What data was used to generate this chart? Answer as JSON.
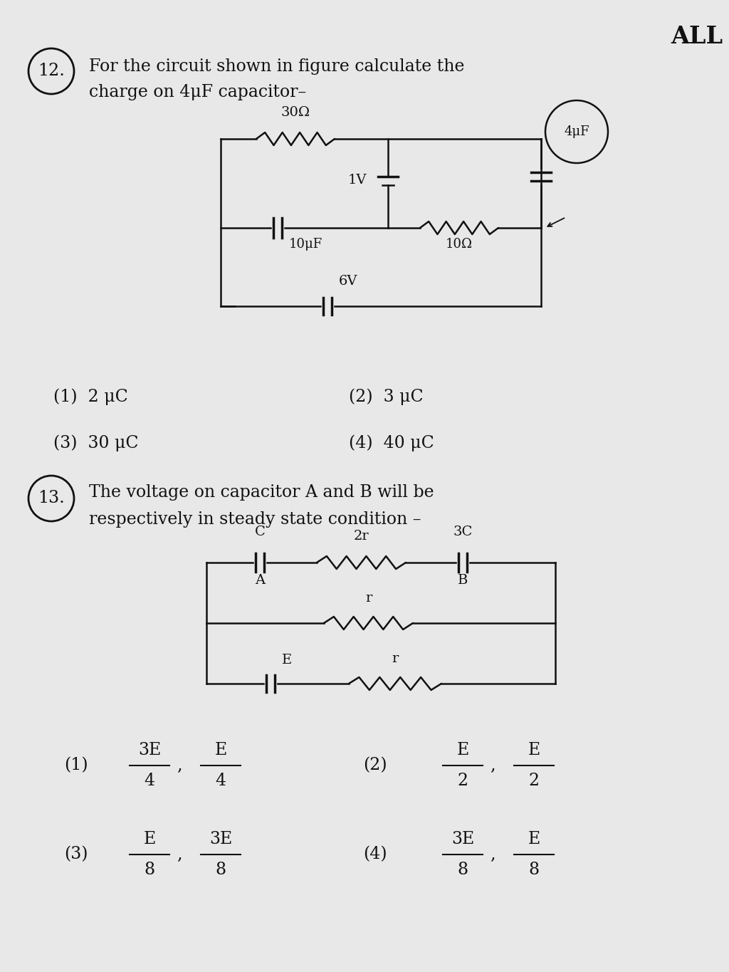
{
  "bg_color": "#e8e8e8",
  "text_color": "#111111",
  "line_color": "#111111",
  "title_text": "ALL",
  "q12_number": "12.",
  "q12_text1": "For the circuit shown in figure calculate the",
  "q12_text2": "charge on 4μF capacitor–",
  "q12_opt1": "(1)  2 μC",
  "q12_opt2": "(2)  3 μC",
  "q12_opt3": "(3)  30 μC",
  "q12_opt4": "(4)  40 μC",
  "q13_number": "13.",
  "q13_text1": "The voltage on capacitor A and B will be",
  "q13_text2": "respectively in steady state condition –",
  "label_30R": "30Ω",
  "label_4uF": "4μF",
  "label_1V": "1V",
  "label_10uF": "10μF",
  "label_10R": "10Ω",
  "label_6V": "6V",
  "label_C": "C",
  "label_2r": "2r",
  "label_3C": "3C",
  "label_A": "A",
  "label_B": "B",
  "label_r": "r",
  "label_E": "E",
  "opt1_n1": "3E",
  "opt1_d1": "4",
  "opt1_n2": "E",
  "opt1_d2": "4",
  "opt2_n1": "E",
  "opt2_d1": "2",
  "opt2_n2": "E",
  "opt2_d2": "2",
  "opt3_n1": "E",
  "opt3_d1": "8",
  "opt3_n2": "3E",
  "opt3_d2": "8",
  "opt4_n1": "3E",
  "opt4_d1": "8",
  "opt4_n2": "E",
  "opt4_d2": "8"
}
